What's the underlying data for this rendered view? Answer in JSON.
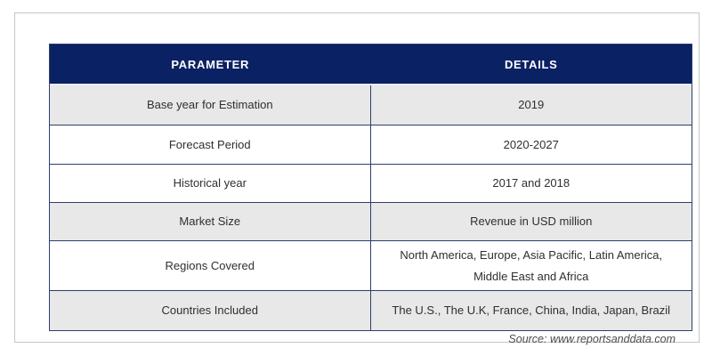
{
  "table": {
    "headers": {
      "parameter": "PARAMETER",
      "details": "DETAILS"
    },
    "rows": [
      {
        "parameter": "Base year for Estimation",
        "details": "2019"
      },
      {
        "parameter": "Forecast Period",
        "details": "2020-2027"
      },
      {
        "parameter": "Historical year",
        "details": "2017 and 2018"
      },
      {
        "parameter": "Market Size",
        "details": "Revenue in USD million"
      },
      {
        "parameter": "Regions Covered",
        "details": "North America, Europe, Asia Pacific, Latin America, Middle East and Africa"
      },
      {
        "parameter": "Countries Included",
        "details": "The U.S., The U.K, France, China, India, Japan, Brazil"
      }
    ]
  },
  "source": {
    "label": "Source: www.reportsanddata.com"
  },
  "colors": {
    "header_bg": "#0a2163",
    "header_text": "#ffffff",
    "shaded_row_bg": "#e8e8e8",
    "plain_row_bg": "#ffffff",
    "cell_border": "#2e3f6e",
    "frame_border": "#c6c6c6",
    "cell_text": "#2f2f2f",
    "source_text": "#4c4c4c"
  }
}
